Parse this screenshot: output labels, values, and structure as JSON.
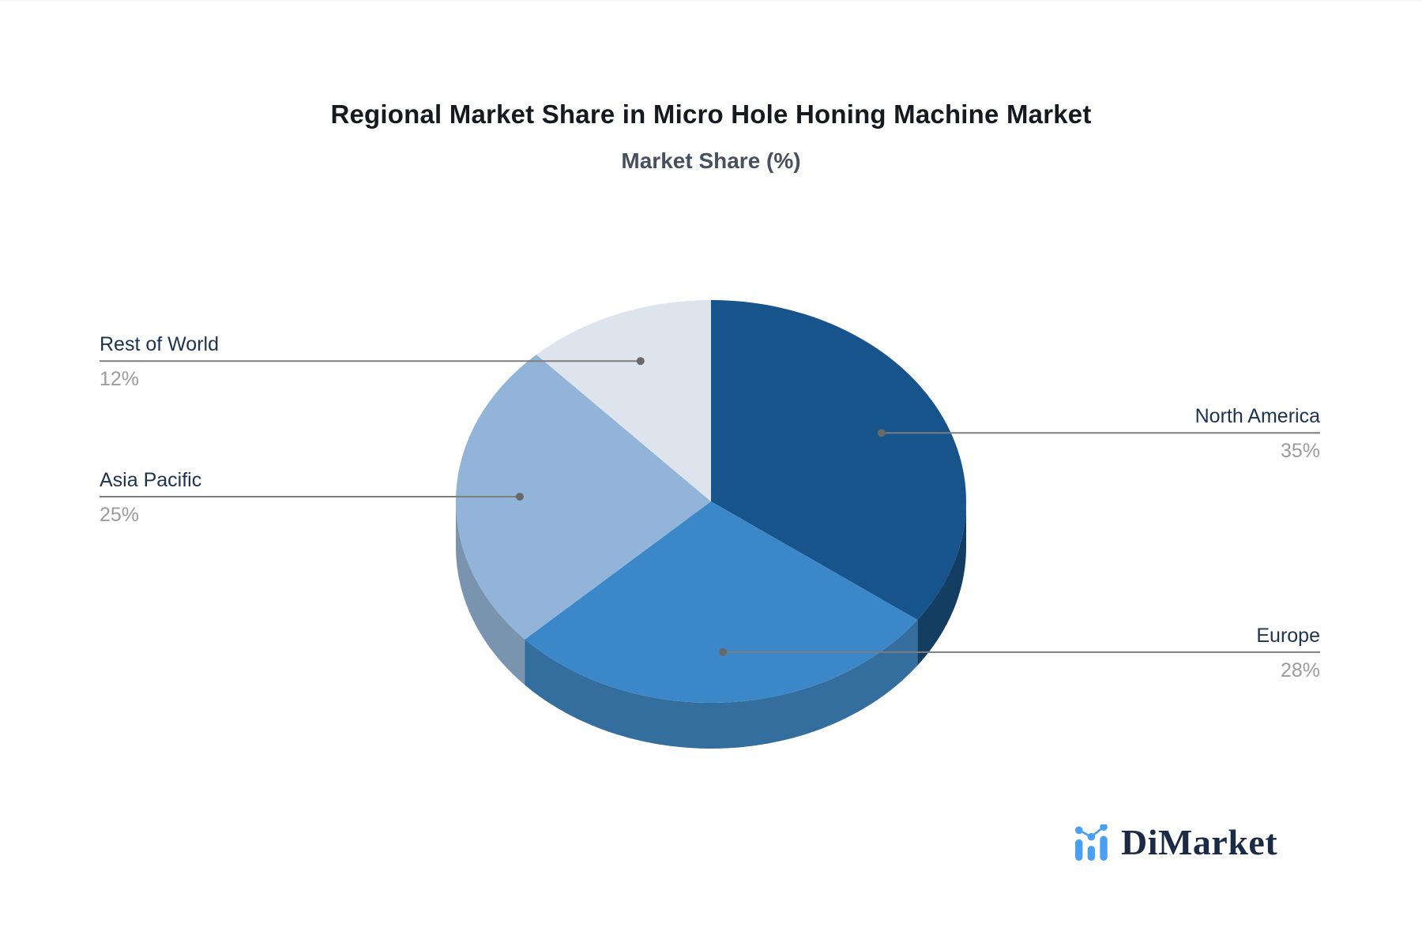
{
  "header": {
    "title": "Regional Market Share in Micro Hole Honing Machine Market",
    "subtitle": "Market Share (%)"
  },
  "chart_data": {
    "type": "pie",
    "style": "3d-pie",
    "title": "Regional Market Share in Micro Hole Honing Machine Market",
    "subtitle": "Market Share (%)",
    "unit": "%",
    "start_angle_deg": 0,
    "direction": "clockwise",
    "legend": "none",
    "slices": [
      {
        "label": "North America",
        "value": 35,
        "pct_label": "35%",
        "color": "#17548C",
        "side_color": "#133E61",
        "label_side": "right"
      },
      {
        "label": "Europe",
        "value": 28,
        "pct_label": "28%",
        "color": "#3B87C8",
        "side_color": "#336E9E",
        "label_side": "right"
      },
      {
        "label": "Asia Pacific",
        "value": 25,
        "pct_label": "25%",
        "color": "#92B4D8",
        "side_color": "#7A94AF",
        "label_side": "left"
      },
      {
        "label": "Rest of World",
        "value": 12,
        "pct_label": "12%",
        "color": "#DDE4EE",
        "side_color": "#B9C5D6",
        "label_side": "left"
      }
    ],
    "labels": {
      "name_color": "#1D3350",
      "pct_color": "#9B9B9B",
      "line_color": "#7D7D7D",
      "dot_color": "#686868"
    }
  },
  "logo": {
    "text": "DiMarket",
    "icon": "bar-chart-logo-icon",
    "icon_color": "#49A0F3",
    "text_color": "#1B2A45"
  }
}
